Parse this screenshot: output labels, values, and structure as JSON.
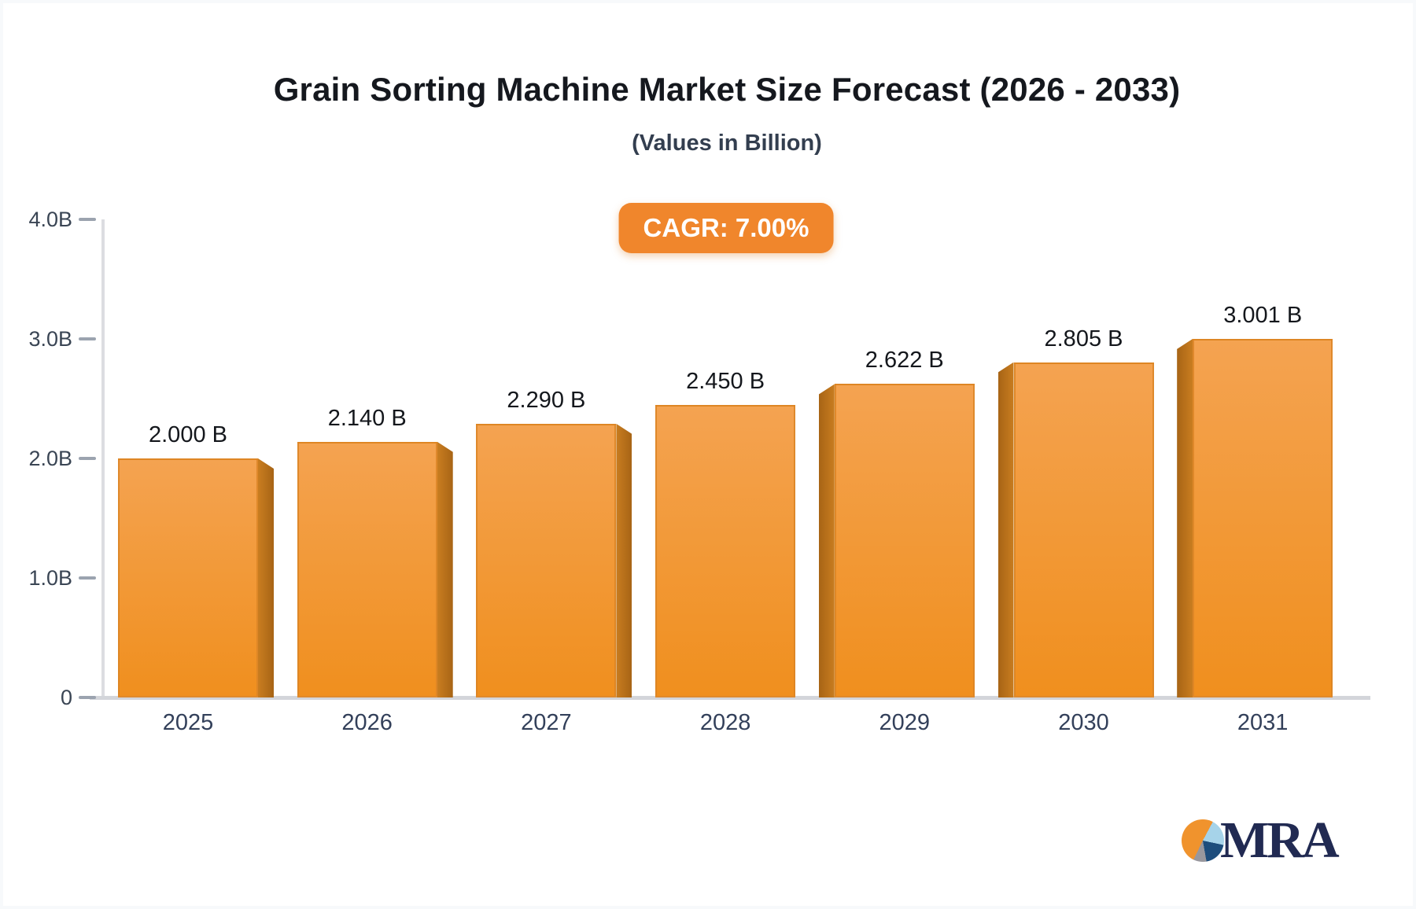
{
  "chart_data": {
    "type": "bar",
    "title": "Grain Sorting Machine Market Size Forecast (2026 - 2033)",
    "subtitle": "(Values in Billion)",
    "cagr_label": "CAGR: 7.00%",
    "cagr": "7.00%",
    "unit": "Billion",
    "categories": [
      "2025",
      "2026",
      "2027",
      "2028",
      "2029",
      "2030",
      "2031"
    ],
    "values": [
      2.0,
      2.14,
      2.29,
      2.45,
      2.622,
      2.805,
      3.001
    ],
    "value_labels": [
      "2.000 B",
      "2.140 B",
      "2.290 B",
      "2.450 B",
      "2.622 B",
      "2.805 B",
      "3.001 B"
    ],
    "xlabel": "",
    "ylabel": "",
    "ylim": [
      0,
      4.0
    ],
    "y_tick_labels": [
      "4.0B",
      "3.0B",
      "2.0B",
      "1.0B",
      "0"
    ],
    "y_tick_values": [
      4.0,
      3.0,
      2.0,
      1.0,
      0
    ],
    "grid": false,
    "legend": false,
    "colors": {
      "badge_background": "#f0862c",
      "bar_front_top": "#f4a351",
      "bar_front_bottom": "#f08f1e",
      "bar_side": "#ab6716",
      "axis_line": "#dcdde1",
      "tick_dash": "#9ba3af",
      "axis_label": "#3a4554",
      "category_label": "#33405a",
      "value_label": "#14171c"
    }
  },
  "logo": {
    "text": "MRA",
    "pie_colors": [
      "#f0932d",
      "#a6d3e9",
      "#1d4d7c",
      "#98979d"
    ]
  }
}
